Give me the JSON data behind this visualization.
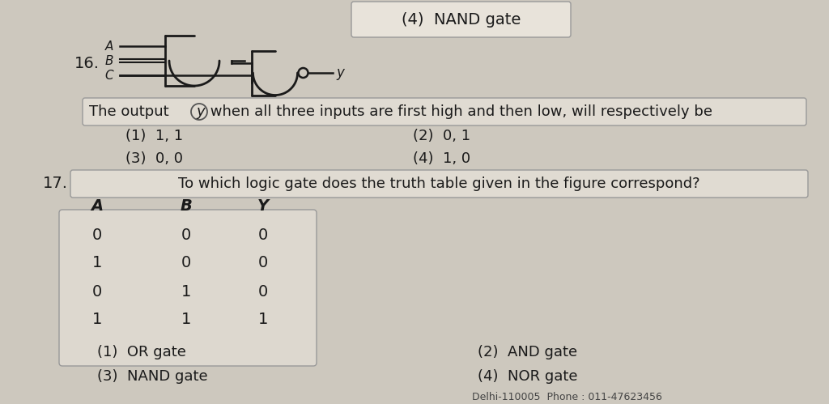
{
  "background_color": "#cdc8be",
  "text_color": "#1a1a1a",
  "box_fill": "#d8d3ca",
  "box_edge": "#999999",
  "q16_num": "16.",
  "q17_num": "17.",
  "q16_answer": "(4)  NAND gate",
  "q16_question_part1": "The output ",
  "q16_question_y": "y",
  "q16_question_part2": " when all three inputs are first high and then low, will respectively be",
  "q16_opt1": "(1)  1, 1",
  "q16_opt2": "(2)  0, 1",
  "q16_opt3": "(3)  0, 0",
  "q16_opt4": "(4)  1, 0",
  "q17_question": "To which logic gate does the truth table given in the figure correspond?",
  "truth_headers": [
    "A",
    "B",
    "Y"
  ],
  "truth_data": [
    [
      0,
      0,
      0
    ],
    [
      1,
      0,
      0
    ],
    [
      0,
      1,
      0
    ],
    [
      1,
      1,
      1
    ]
  ],
  "q17_opt1": "(1)  OR gate",
  "q17_opt2": "(2)  AND gate",
  "q17_opt3": "(3)  NAND gate",
  "q17_opt4": "(4)  NOR gate",
  "bottom_text": "Delhi-110005  Phone : 011-47623456",
  "gate_color": "#1a1a1a",
  "input_labels": [
    "A",
    "B",
    "C"
  ]
}
